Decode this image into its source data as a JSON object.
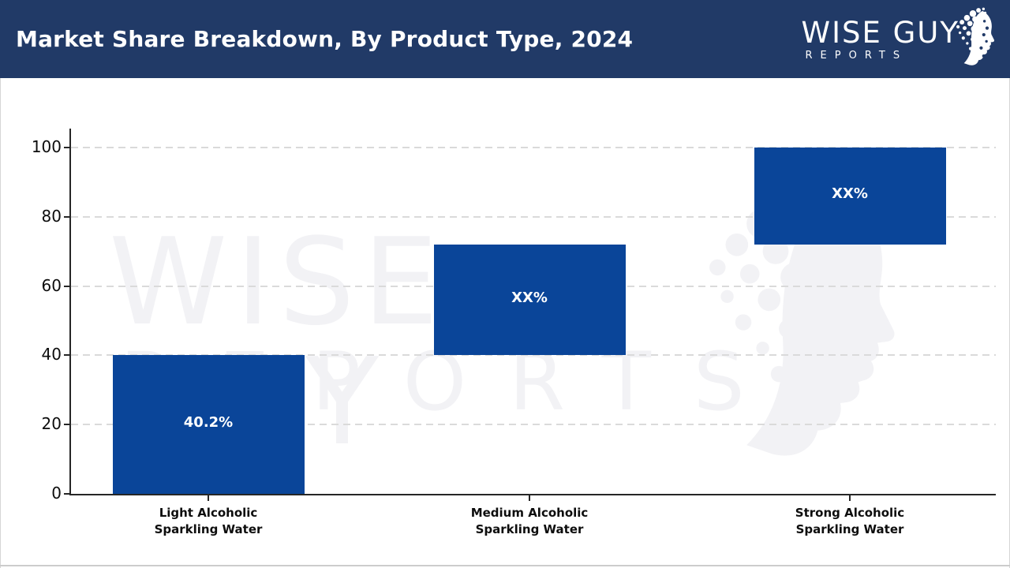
{
  "header": {
    "title": "Market Share Breakdown, By Product Type, 2024",
    "logo": {
      "line1": "WISE GUY",
      "line2": "REPORTS"
    },
    "bg_color": "#213a67"
  },
  "watermark": {
    "line1": "WISE GUY",
    "line2": "REPORTS"
  },
  "chart_data": {
    "type": "bar",
    "subtype": "floating-segment-bars",
    "title": "Market Share Breakdown, By Product Type, 2024",
    "categories": [
      [
        "Light Alcoholic",
        "Sparkling Water"
      ],
      [
        "Medium Alcoholic",
        "Sparkling Water"
      ],
      [
        "Strong Alcoholic",
        "Sparkling Water"
      ]
    ],
    "segments": [
      {
        "label": "40.2%",
        "from": 0,
        "to": 40.2
      },
      {
        "label": "XX%",
        "from": 40.2,
        "to": 72
      },
      {
        "label": "XX%",
        "from": 72,
        "to": 100
      }
    ],
    "ylim": [
      0,
      100
    ],
    "yticks": [
      0,
      20,
      40,
      60,
      80,
      100
    ],
    "grid": {
      "axis": "y",
      "style": "dashed",
      "color": "#dadada"
    },
    "legend": "none",
    "bar_color": "#0a4599",
    "bar_label_color": "#ffffff"
  }
}
